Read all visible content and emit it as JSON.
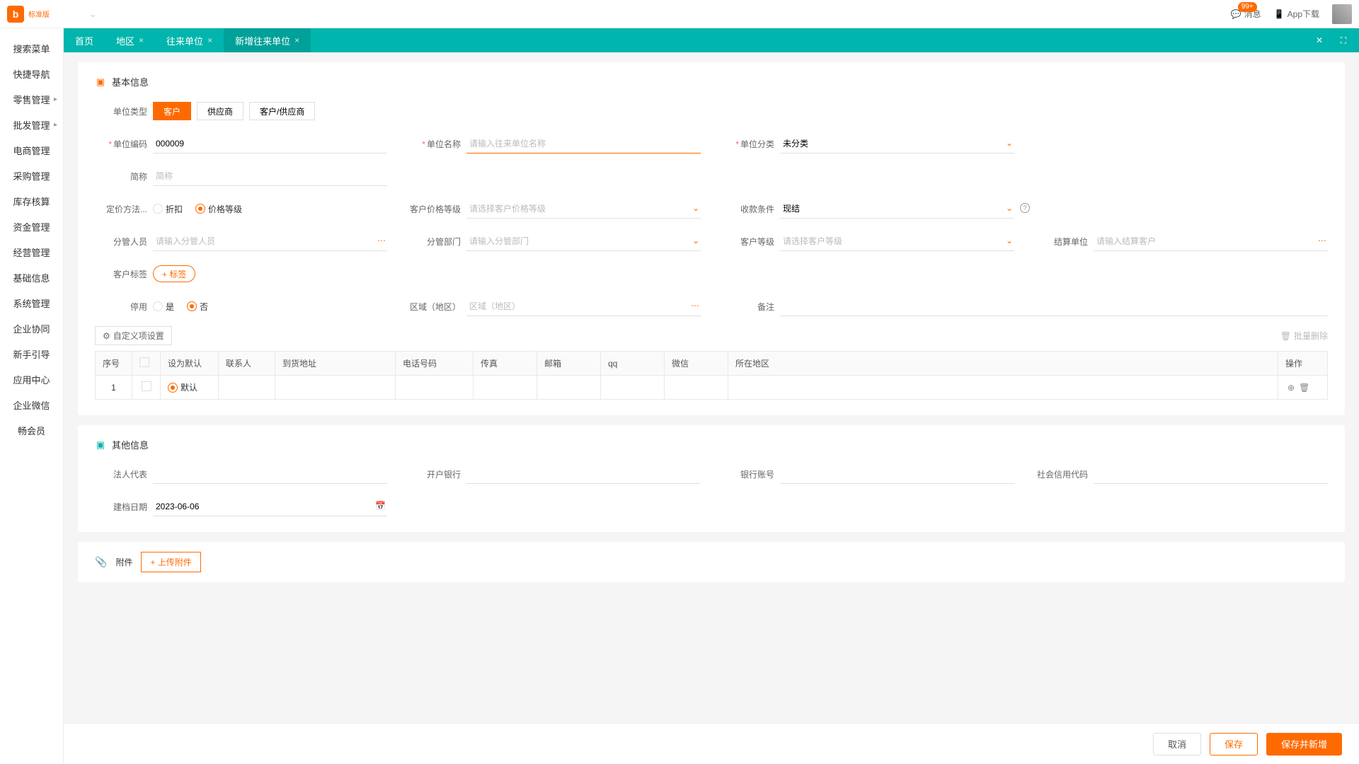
{
  "colors": {
    "accent": "#ff6a00",
    "teal": "#00b5ad"
  },
  "header": {
    "brand_letter": "b",
    "brand_sub": "标准版",
    "company_placeholder": "",
    "messages_label": "消息",
    "messages_badge": "99+",
    "app_download": "App下载"
  },
  "sidebar": {
    "items": [
      {
        "label": "搜索菜单"
      },
      {
        "label": "快捷导航"
      },
      {
        "label": "零售管理",
        "arrow": true
      },
      {
        "label": "批发管理",
        "arrow": true
      },
      {
        "label": "电商管理"
      },
      {
        "label": "采购管理"
      },
      {
        "label": "库存核算"
      },
      {
        "label": "资金管理"
      },
      {
        "label": "经营管理"
      },
      {
        "label": "基础信息"
      },
      {
        "label": "系统管理"
      },
      {
        "label": "企业协同"
      },
      {
        "label": "新手引导"
      },
      {
        "label": "应用中心"
      },
      {
        "label": "企业微信"
      },
      {
        "label": "畅会员"
      }
    ]
  },
  "tabs": [
    {
      "label": "首页",
      "closable": false
    },
    {
      "label": "地区",
      "closable": true
    },
    {
      "label": "往来单位",
      "closable": true
    },
    {
      "label": "新增往来单位",
      "closable": true,
      "active": true
    }
  ],
  "section_basic": {
    "title": "基本信息"
  },
  "section_other": {
    "title": "其他信息"
  },
  "form": {
    "unit_type": {
      "label": "单位类型",
      "options": [
        "客户",
        "供应商",
        "客户/供应商"
      ],
      "selected": 0
    },
    "unit_code": {
      "label": "单位编码",
      "value": "000009",
      "required": true
    },
    "unit_name": {
      "label": "单位名称",
      "placeholder": "请输入往来单位名称",
      "required": true
    },
    "unit_category": {
      "label": "单位分类",
      "value": "未分类",
      "required": true
    },
    "short_name": {
      "label": "简称",
      "placeholder": "简称"
    },
    "pricing_method": {
      "label": "定价方法...",
      "options": [
        "折扣",
        "价格等级"
      ],
      "selected": 1
    },
    "price_level": {
      "label": "客户价格等级",
      "placeholder": "请选择客户价格等级"
    },
    "payment_terms": {
      "label": "收款条件",
      "value": "现结"
    },
    "assigned_person": {
      "label": "分管人员",
      "placeholder": "请输入分管人员"
    },
    "assigned_dept": {
      "label": "分管部门",
      "placeholder": "请输入分管部门"
    },
    "customer_level": {
      "label": "客户等级",
      "placeholder": "请选择客户等级"
    },
    "settle_unit": {
      "label": "结算单位",
      "placeholder": "请输入结算客户"
    },
    "customer_tags": {
      "label": "客户标签",
      "button": "+ 标签"
    },
    "disabled": {
      "label": "停用",
      "options": [
        "是",
        "否"
      ],
      "selected": 1
    },
    "region": {
      "label": "区域（地区）",
      "placeholder": "区域（地区）"
    },
    "remark": {
      "label": "备注"
    },
    "custom_settings": "自定义项设置",
    "batch_delete": "批量删除",
    "legal_rep": {
      "label": "法人代表"
    },
    "bank": {
      "label": "开户银行"
    },
    "bank_account": {
      "label": "银行账号"
    },
    "credit_code": {
      "label": "社会信用代码"
    },
    "create_date": {
      "label": "建档日期",
      "value": "2023-06-06"
    }
  },
  "contact_table": {
    "headers": [
      "序号",
      "",
      "设为默认",
      "联系人",
      "到货地址",
      "电话号码",
      "传真",
      "邮箱",
      "qq",
      "微信",
      "所在地区",
      "操作"
    ],
    "rows": [
      {
        "seq": "1",
        "default_label": "默认",
        "default_checked": true
      }
    ]
  },
  "attachment": {
    "label": "附件",
    "upload_button": "+ 上传附件"
  },
  "footer": {
    "cancel": "取消",
    "save": "保存",
    "save_and_new": "保存并新增"
  }
}
